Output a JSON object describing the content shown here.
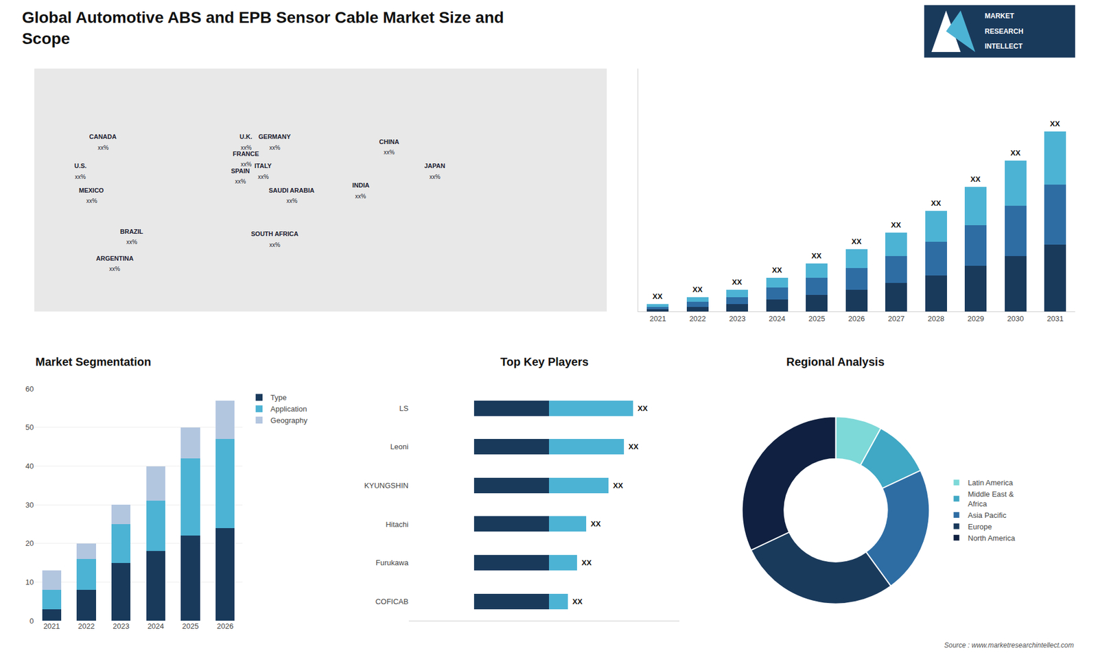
{
  "title": "Global Automotive ABS and EPB Sensor Cable Market Size and\nScope",
  "annotations": [
    "Source : www.marketresearchintellect.com",
    "MARKET",
    "RESEARCH",
    "INTELLECT"
  ],
  "chart_data": [
    {
      "type": "map",
      "annotations": [
        {
          "text": "CANADA",
          "subtext": "xx%"
        },
        {
          "text": "U.S.",
          "subtext": "xx%"
        },
        {
          "text": "MEXICO",
          "subtext": "xx%"
        },
        {
          "text": "BRAZIL",
          "subtext": "xx%"
        },
        {
          "text": "ARGENTINA",
          "subtext": "xx%"
        },
        {
          "text": "U.K.",
          "subtext": "xx%"
        },
        {
          "text": "FRANCE",
          "subtext": "xx%"
        },
        {
          "text": "SPAIN",
          "subtext": "xx%"
        },
        {
          "text": "GERMANY",
          "subtext": "xx%"
        },
        {
          "text": "ITALY",
          "subtext": "xx%"
        },
        {
          "text": "SAUDI ARABIA",
          "subtext": "xx%"
        },
        {
          "text": "SOUTH AFRICA",
          "subtext": "xx%"
        },
        {
          "text": "CHINA",
          "subtext": "xx%"
        },
        {
          "text": "JAPAN",
          "subtext": "xx%"
        },
        {
          "text": "INDIA",
          "subtext": "xx%"
        }
      ]
    },
    {
      "type": "bar",
      "stacked": true,
      "categories": [
        "2021",
        "2022",
        "2023",
        "2024",
        "2025",
        "2026",
        "2027",
        "2028",
        "2029",
        "2030",
        "2031"
      ],
      "series": [
        {
          "color": "#1a3a5c",
          "values": [
            1,
            2,
            3,
            5,
            7,
            9,
            12,
            15,
            19,
            23,
            28
          ]
        },
        {
          "color": "#2e6da4",
          "values": [
            1,
            2,
            3,
            5,
            7,
            9,
            11,
            14,
            17,
            21,
            25
          ]
        },
        {
          "color": "#4db3d4",
          "values": [
            1,
            2,
            3,
            4,
            6,
            8,
            10,
            13,
            16,
            19,
            22
          ]
        }
      ],
      "ylim": [
        0,
        101.25
      ],
      "tick_labels": "x",
      "grid": false,
      "annotations": [
        "XX",
        "XX",
        "XX",
        "XX",
        "XX",
        "XX",
        "XX",
        "XX",
        "XX",
        "XX",
        "XX"
      ]
    },
    {
      "type": "bar",
      "title": "Market Segmentation",
      "stacked": true,
      "categories": [
        "2021",
        "2022",
        "2023",
        "2024",
        "2025",
        "2026"
      ],
      "series": [
        {
          "name": "Type",
          "color": "#1a3a5c",
          "values": [
            3,
            8,
            15,
            18,
            22,
            24
          ]
        },
        {
          "name": "Application",
          "color": "#4db3d4",
          "values": [
            5,
            8,
            10,
            13,
            20,
            23
          ]
        },
        {
          "name": "Geography",
          "color": "#b3c6e0",
          "values": [
            5,
            4,
            5,
            9,
            8,
            10
          ]
        }
      ],
      "ylim": [
        0,
        60
      ],
      "yticks": [
        0,
        10,
        20,
        30,
        40,
        50,
        60
      ],
      "grid": true,
      "legend": "right"
    },
    {
      "type": "bar",
      "title": "Top Key Players",
      "orientation": "horizontal",
      "stacked": false,
      "categories": [
        "LS",
        "Leoni",
        "KYUNGSHIN",
        "Hitachi",
        "Furukawa",
        "COFICAB"
      ],
      "series": [
        {
          "color": "#4db3d4",
          "values": [
            0.85,
            0.8,
            0.72,
            0.6,
            0.55,
            0.5
          ]
        },
        {
          "color": "#1a3a5c",
          "values": [
            0.4,
            0.4,
            0.4,
            0.4,
            0.4,
            0.4
          ]
        }
      ],
      "xlim": [
        -0.35,
        1.1
      ],
      "tick_labels": "y",
      "grid": false,
      "annotations": [
        "XX",
        "XX",
        "XX",
        "XX",
        "XX",
        "XX"
      ]
    },
    {
      "type": "donut",
      "title": "Regional Analysis",
      "categories": [
        "Latin America",
        "Middle East &\nAfrica",
        "Asia Pacific",
        "Europe",
        "North America"
      ],
      "values": [
        0.08,
        0.1,
        0.22,
        0.28,
        0.32
      ],
      "colors": [
        "#7dd8d8",
        "#40a8c4",
        "#2e6da4",
        "#1a3a5c",
        "#0f2040"
      ],
      "legend": "right"
    }
  ]
}
